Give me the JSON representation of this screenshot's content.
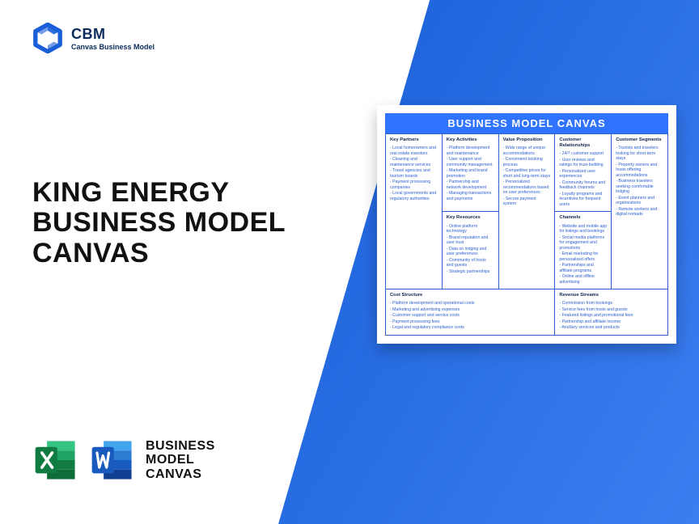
{
  "brand": {
    "abbr": "CBM",
    "full": "Canvas Business Model",
    "logo_color": "#1a5fd8"
  },
  "main_title": "KING ENERGY BUSINESS MODEL CANVAS",
  "bottom_label": "BUSINESS MODEL CANVAS",
  "colors": {
    "blue_gradient_from": "#1a5fd8",
    "blue_gradient_to": "#3b7ef0",
    "canvas_header": "#2f73ff",
    "cell_border": "#2f60d0",
    "text_dark": "#111111"
  },
  "icons": {
    "excel_colors": {
      "dark": "#107c41",
      "mid": "#21a366",
      "light": "#33c481",
      "pale": "#e7f6ec"
    },
    "word_colors": {
      "dark": "#185abd",
      "mid": "#2b7cd3",
      "light": "#41a5ee",
      "pale": "#e6f0fb"
    }
  },
  "canvas": {
    "title": "BUSINESS MODEL CANVAS",
    "blocks": {
      "key_partners": {
        "head": "Key Partners",
        "items": [
          "Local homeowners and real estate investors",
          "Cleaning and maintenance services",
          "Travel agencies and tourism boards",
          "Payment processing companies",
          "Local governments and regulatory authorities"
        ]
      },
      "key_activities": {
        "head": "Key Activities",
        "items": [
          "Platform development and maintenance",
          "User support and community management",
          "Marketing and brand promotion",
          "Partnership and network development",
          "Managing transactions and payments"
        ]
      },
      "key_resources": {
        "head": "Key Resources",
        "items": [
          "Online platform technology",
          "Brand reputation and user trust",
          "Data on lodging and user preferences",
          "Community of hosts and guests",
          "Strategic partnerships"
        ]
      },
      "value_proposition": {
        "head": "Value Proposition",
        "items": [
          "Wide range of unique accommodations",
          "Convenient booking process",
          "Competitive prices for short and long-term stays",
          "Personalized recommendations based on user preferences",
          "Secure payment system"
        ]
      },
      "customer_relationships": {
        "head": "Customer Relationships",
        "items": [
          "24/7 customer support",
          "User reviews and ratings for trust-building",
          "Personalized user experiences",
          "Community forums and feedback channels",
          "Loyalty programs and incentives for frequent users"
        ]
      },
      "channels": {
        "head": "Channels",
        "items": [
          "Website and mobile app for listings and bookings",
          "Social media platforms for engagement and promotions",
          "Email marketing for personalized offers",
          "Partnerships and affiliate programs",
          "Online and offline advertising"
        ]
      },
      "customer_segments": {
        "head": "Customer Segments",
        "items": [
          "Tourists and travelers looking for short-term stays",
          "Property owners and hosts offering accommodations",
          "Business travelers seeking comfortable lodging",
          "Event planners and organizations",
          "Remote workers and digital nomads"
        ]
      },
      "cost_structure": {
        "head": "Cost Structure",
        "items": [
          "Platform development and operational costs",
          "Marketing and advertising expenses",
          "Customer support and service costs",
          "Payment processing fees",
          "Legal and regulatory compliance costs"
        ]
      },
      "revenue_streams": {
        "head": "Revenue Streams",
        "items": [
          "Commission from bookings",
          "Service fees from hosts and guests",
          "Featured listings and promotional fees",
          "Partnership and affiliate income",
          "Ancillary services and products"
        ]
      }
    }
  }
}
